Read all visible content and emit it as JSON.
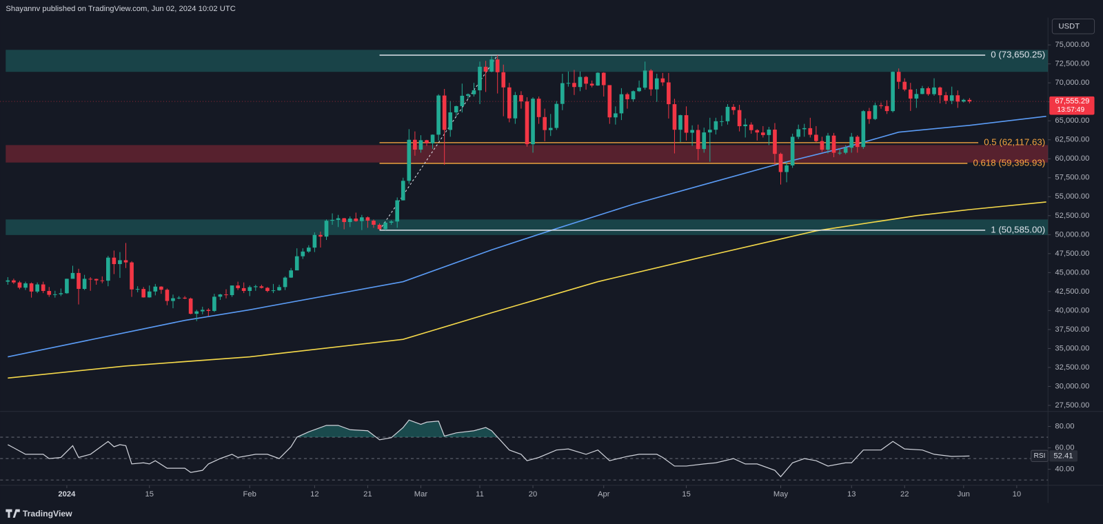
{
  "header": {
    "publisher": "Shayannv published on TradingView.com, Jun 02, 2024 10:02 UTC",
    "currency_button": "USDT",
    "footer_logo": "TradingView"
  },
  "chart_data": {
    "type": "candlestick",
    "up_color": "#22ab94",
    "down_color": "#f23645",
    "grid": false,
    "xlim": [
      -1.3,
      176.3
    ],
    "ylim": [
      26700,
      78600
    ],
    "xticks": [
      {
        "value": 10,
        "label": "2024"
      },
      {
        "value": 24,
        "label": "15"
      },
      {
        "value": 41,
        "label": "Feb"
      },
      {
        "value": 52,
        "label": "12"
      },
      {
        "value": 61,
        "label": "21"
      },
      {
        "value": 70,
        "label": "Mar"
      },
      {
        "value": 80,
        "label": "11"
      },
      {
        "value": 89,
        "label": "20"
      },
      {
        "value": 101,
        "label": "Apr"
      },
      {
        "value": 115,
        "label": "15"
      },
      {
        "value": 131,
        "label": "May"
      },
      {
        "value": 143,
        "label": "13"
      },
      {
        "value": 152,
        "label": "22"
      },
      {
        "value": 162,
        "label": "Jun"
      },
      {
        "value": 171,
        "label": "10"
      }
    ],
    "yticks": [
      {
        "value": 27500,
        "label": "27,500.00"
      },
      {
        "value": 30000,
        "label": "30,000.00"
      },
      {
        "value": 32500,
        "label": "32,500.00"
      },
      {
        "value": 35000,
        "label": "35,000.00"
      },
      {
        "value": 37500,
        "label": "37,500.00"
      },
      {
        "value": 40000,
        "label": "40,000.00"
      },
      {
        "value": 42500,
        "label": "42,500.00"
      },
      {
        "value": 45000,
        "label": "45,000.00"
      },
      {
        "value": 47500,
        "label": "47,500.00"
      },
      {
        "value": 50000,
        "label": "50,000.00"
      },
      {
        "value": 52500,
        "label": "52,500.00"
      },
      {
        "value": 55000,
        "label": "55,000.00"
      },
      {
        "value": 57500,
        "label": "57,500.00"
      },
      {
        "value": 60000,
        "label": "60,000.00"
      },
      {
        "value": 62500,
        "label": "62,500.00"
      },
      {
        "value": 65000,
        "label": "65,000.00"
      },
      {
        "value": 67500,
        "label": "67,500.00"
      },
      {
        "value": 70000,
        "label": "70,000.00"
      },
      {
        "value": 72500,
        "label": "72,500.00"
      },
      {
        "value": 75000,
        "label": "75,000.00"
      }
    ],
    "candles": [
      [
        43800,
        44400,
        43400,
        43970
      ],
      [
        43970,
        44200,
        43500,
        43700
      ],
      [
        43700,
        43900,
        42800,
        43010
      ],
      [
        43010,
        43800,
        42700,
        43580
      ],
      [
        43580,
        43700,
        41700,
        42500
      ],
      [
        42500,
        43700,
        42300,
        43440
      ],
      [
        43440,
        43800,
        42300,
        42580
      ],
      [
        42580,
        43100,
        41800,
        42070
      ],
      [
        42070,
        42600,
        41700,
        42140
      ],
      [
        42140,
        42900,
        41900,
        42280
      ],
      [
        42280,
        44200,
        42200,
        44180
      ],
      [
        44180,
        45900,
        44200,
        44950
      ],
      [
        44950,
        45500,
        40800,
        42850
      ],
      [
        42850,
        44700,
        42700,
        44180
      ],
      [
        44180,
        44400,
        42600,
        44160
      ],
      [
        44160,
        44200,
        43400,
        43970
      ],
      [
        43970,
        44500,
        43600,
        43930
      ],
      [
        43930,
        47200,
        43200,
        46970
      ],
      [
        46970,
        47900,
        44800,
        46120
      ],
      [
        46120,
        47700,
        44300,
        46630
      ],
      [
        46630,
        48900,
        45600,
        46340
      ],
      [
        46340,
        46500,
        41800,
        42780
      ],
      [
        42780,
        43200,
        42400,
        42840
      ],
      [
        42840,
        43100,
        41700,
        41730
      ],
      [
        41730,
        43300,
        41700,
        42510
      ],
      [
        42510,
        43500,
        42000,
        43150
      ],
      [
        43150,
        43200,
        42200,
        42740
      ],
      [
        42740,
        42900,
        40700,
        41260
      ],
      [
        41260,
        42100,
        40300,
        41620
      ],
      [
        41620,
        41900,
        41500,
        41690
      ],
      [
        41690,
        41900,
        41500,
        41580
      ],
      [
        41580,
        41700,
        39500,
        39570
      ],
      [
        39570,
        40100,
        38600,
        39890
      ],
      [
        39890,
        40500,
        39500,
        40090
      ],
      [
        40090,
        40300,
        39300,
        39950
      ],
      [
        39950,
        42200,
        39800,
        41820
      ],
      [
        41820,
        42200,
        41400,
        42120
      ],
      [
        42120,
        42800,
        41600,
        42030
      ],
      [
        42030,
        43300,
        41800,
        43300
      ],
      [
        43300,
        43800,
        42700,
        42950
      ],
      [
        42950,
        43700,
        42300,
        42580
      ],
      [
        42580,
        43300,
        41900,
        43080
      ],
      [
        43080,
        43400,
        42600,
        43190
      ],
      [
        43190,
        43400,
        42900,
        42990
      ],
      [
        42990,
        43100,
        42400,
        42580
      ],
      [
        42580,
        43500,
        42300,
        42660
      ],
      [
        42660,
        43400,
        42600,
        43090
      ],
      [
        43090,
        44500,
        42700,
        44340
      ],
      [
        44340,
        45600,
        44300,
        45290
      ],
      [
        45290,
        48200,
        45300,
        47150
      ],
      [
        47150,
        48200,
        46800,
        47770
      ],
      [
        47770,
        48600,
        47600,
        48290
      ],
      [
        48290,
        50300,
        47700,
        49960
      ],
      [
        49960,
        50400,
        48300,
        49740
      ],
      [
        49740,
        52000,
        49300,
        51830
      ],
      [
        51830,
        52800,
        51300,
        51940
      ],
      [
        51940,
        52600,
        51000,
        52160
      ],
      [
        52160,
        52200,
        50700,
        51660
      ],
      [
        51660,
        52400,
        51000,
        52120
      ],
      [
        52120,
        52900,
        51700,
        51780
      ],
      [
        51780,
        52600,
        50600,
        52280
      ],
      [
        52280,
        52400,
        50900,
        51840
      ],
      [
        51840,
        52000,
        50900,
        51300
      ],
      [
        51300,
        51500,
        50600,
        50730
      ],
      [
        50730,
        51700,
        50600,
        51570
      ],
      [
        51570,
        51900,
        51300,
        51730
      ],
      [
        51730,
        54900,
        50900,
        54520
      ],
      [
        54520,
        57500,
        54500,
        57090
      ],
      [
        57090,
        63900,
        56700,
        62500
      ],
      [
        62500,
        63600,
        60400,
        61200
      ],
      [
        61200,
        63100,
        60800,
        62440
      ],
      [
        62440,
        62500,
        61700,
        62030
      ],
      [
        62030,
        63200,
        61300,
        63170
      ],
      [
        63170,
        68500,
        62400,
        68330
      ],
      [
        68330,
        69200,
        59200,
        63800
      ],
      [
        63800,
        67600,
        62900,
        66110
      ],
      [
        66110,
        67000,
        65600,
        66930
      ],
      [
        66930,
        69900,
        66100,
        68300
      ],
      [
        68300,
        68600,
        67900,
        68500
      ],
      [
        68500,
        70000,
        68200,
        69020
      ],
      [
        69020,
        72800,
        67200,
        72120
      ],
      [
        72120,
        72900,
        68800,
        71480
      ],
      [
        71480,
        73500,
        71400,
        73080
      ],
      [
        73080,
        73650.25,
        68600,
        71400
      ],
      [
        71400,
        72400,
        65600,
        69400
      ],
      [
        69400,
        70000,
        64800,
        65320
      ],
      [
        65320,
        68800,
        64600,
        68390
      ],
      [
        68390,
        68900,
        66600,
        67550
      ],
      [
        67550,
        68100,
        61600,
        61910
      ],
      [
        61910,
        68100,
        60800,
        67910
      ],
      [
        67910,
        68200,
        64600,
        65490
      ],
      [
        65490,
        66600,
        62300,
        63780
      ],
      [
        63780,
        65900,
        63000,
        64060
      ],
      [
        64060,
        67600,
        63800,
        67230
      ],
      [
        67230,
        71200,
        66400,
        69960
      ],
      [
        69960,
        71500,
        69500,
        69990
      ],
      [
        69990,
        71700,
        68400,
        69450
      ],
      [
        69450,
        71500,
        68900,
        70780
      ],
      [
        70780,
        70900,
        69100,
        69890
      ],
      [
        69890,
        70300,
        69400,
        69650
      ],
      [
        69650,
        71400,
        69600,
        71330
      ],
      [
        71330,
        71400,
        68200,
        69700
      ],
      [
        69700,
        69700,
        64600,
        65450
      ],
      [
        65450,
        66900,
        64500,
        65980
      ],
      [
        65980,
        69300,
        65100,
        68500
      ],
      [
        68500,
        68700,
        66600,
        67840
      ],
      [
        67840,
        69000,
        67500,
        68900
      ],
      [
        68900,
        70300,
        68800,
        69360
      ],
      [
        69360,
        72800,
        69100,
        71620
      ],
      [
        71620,
        71800,
        68300,
        69140
      ],
      [
        69140,
        71200,
        67500,
        70590
      ],
      [
        70590,
        71300,
        69600,
        70060
      ],
      [
        70060,
        71300,
        65300,
        67190
      ],
      [
        67190,
        67900,
        60700,
        63820
      ],
      [
        63820,
        65800,
        62200,
        65740
      ],
      [
        65740,
        66900,
        62400,
        63430
      ],
      [
        63430,
        64400,
        61700,
        63790
      ],
      [
        63790,
        64500,
        59800,
        61280
      ],
      [
        61280,
        64100,
        60800,
        63470
      ],
      [
        63470,
        65400,
        59600,
        63820
      ],
      [
        63820,
        65400,
        63200,
        64940
      ],
      [
        64940,
        65700,
        64300,
        64940
      ],
      [
        64940,
        67200,
        64500,
        66840
      ],
      [
        66840,
        67200,
        65800,
        66410
      ],
      [
        66410,
        67100,
        63600,
        64290
      ],
      [
        64290,
        65300,
        62800,
        64500
      ],
      [
        64500,
        64800,
        63300,
        63770
      ],
      [
        63770,
        63900,
        62400,
        63460
      ],
      [
        63460,
        64300,
        62800,
        63120
      ],
      [
        63120,
        64200,
        61800,
        63840
      ],
      [
        63840,
        64700,
        59200,
        60640
      ],
      [
        60640,
        60800,
        56600,
        58250
      ],
      [
        58250,
        59600,
        56900,
        59120
      ],
      [
        59120,
        63300,
        58800,
        62890
      ],
      [
        62890,
        64500,
        62600,
        63890
      ],
      [
        63890,
        64600,
        62900,
        64030
      ],
      [
        64030,
        65400,
        62800,
        63160
      ],
      [
        63160,
        64300,
        62200,
        62330
      ],
      [
        62330,
        62900,
        60900,
        61190
      ],
      [
        61190,
        63400,
        60700,
        63050
      ],
      [
        63050,
        63400,
        60200,
        60790
      ],
      [
        60790,
        61400,
        60500,
        60790
      ],
      [
        60790,
        61800,
        60600,
        61450
      ],
      [
        61450,
        63400,
        60800,
        62900
      ],
      [
        62900,
        63100,
        60800,
        61550
      ],
      [
        61550,
        66400,
        61300,
        66270
      ],
      [
        66270,
        66700,
        64600,
        65230
      ],
      [
        65230,
        67400,
        65100,
        67050
      ],
      [
        67050,
        67400,
        66600,
        66940
      ],
      [
        66940,
        67700,
        65900,
        66280
      ],
      [
        66280,
        71500,
        66100,
        71450
      ],
      [
        71450,
        71900,
        69200,
        70140
      ],
      [
        70140,
        70600,
        68900,
        69120
      ],
      [
        69120,
        70000,
        66300,
        67930
      ],
      [
        67930,
        69200,
        66700,
        68530
      ],
      [
        68530,
        69600,
        68500,
        69290
      ],
      [
        69290,
        69500,
        68300,
        68510
      ],
      [
        68510,
        70600,
        68300,
        69390
      ],
      [
        69390,
        69500,
        67300,
        68370
      ],
      [
        68370,
        68800,
        67200,
        67630
      ],
      [
        67630,
        69500,
        67200,
        68360
      ],
      [
        68360,
        69000,
        66700,
        67530
      ],
      [
        67530,
        67900,
        67400,
        67760
      ],
      [
        67760,
        68000,
        67300,
        67555.29
      ]
    ],
    "moving_averages": [
      {
        "color": "#5b9cf6",
        "x": [
          0,
          30,
          41,
          67,
          82,
          93,
          106,
          118,
          131,
          142,
          151,
          163,
          176
        ],
        "values": [
          33900,
          38700,
          40100,
          43800,
          48000,
          50800,
          54000,
          56600,
          59400,
          61500,
          63500,
          64400,
          65600
        ]
      },
      {
        "color": "#f5d94a",
        "x": [
          0,
          20,
          41,
          67,
          82,
          100,
          118,
          137,
          154,
          163,
          176
        ],
        "values": [
          31100,
          32700,
          33900,
          36200,
          39700,
          43800,
          47100,
          50500,
          52500,
          53300,
          54300
        ]
      }
    ],
    "zones": [
      {
        "top": 74350,
        "bottom": 71450,
        "color": "#26a69a"
      },
      {
        "top": 61800,
        "bottom": 59500,
        "color": "#f23645"
      },
      {
        "top": 52000,
        "bottom": 49950,
        "color": "#26a69a"
      }
    ],
    "fib": {
      "anchor_x": [
        63,
        83
      ],
      "levels": [
        {
          "value": 73650.25,
          "label": "0 (73,650.25)",
          "color": "#e0e3eb"
        },
        {
          "value": 62117.63,
          "label": "0.5 (62,117.63)",
          "color": "#f7a540"
        },
        {
          "value": 59395.93,
          "label": "0.618 (59,395.93)",
          "color": "#f7a540"
        },
        {
          "value": 50585.0,
          "label": "1 (50,585.00)",
          "color": "#e0e3eb"
        }
      ]
    },
    "last_price": {
      "value": 67555.29,
      "label": "67,555.29",
      "countdown": "13:57:49",
      "color": "#f23645"
    },
    "rsi": {
      "name": "RSI",
      "color": "#d1d4dc",
      "ylim": [
        25,
        94
      ],
      "yticks": [
        {
          "value": 80,
          "label": "80.00"
        },
        {
          "value": 60,
          "label": "60.00"
        },
        {
          "value": 40,
          "label": "40.00"
        }
      ],
      "bands": [
        70,
        50,
        30
      ],
      "x": [
        0,
        1,
        3,
        6,
        7,
        9,
        11,
        12,
        14,
        17,
        18,
        19,
        20,
        21,
        23,
        24,
        25,
        27,
        30,
        31,
        33,
        34,
        36,
        38,
        39,
        42,
        44,
        46,
        48,
        49,
        51,
        54,
        56,
        58,
        61,
        63,
        65,
        67,
        68,
        70,
        71,
        73,
        74,
        76,
        79,
        81,
        82,
        85,
        87,
        88,
        90,
        93,
        95,
        98,
        100,
        102,
        105,
        107,
        110,
        111,
        113,
        115,
        118,
        120,
        123,
        125,
        127,
        130,
        131,
        133,
        135,
        137,
        139,
        142,
        143,
        145,
        148,
        150,
        152,
        155,
        157,
        160,
        163
      ],
      "values": [
        63,
        60,
        54,
        54,
        50,
        51,
        62,
        51,
        54,
        66,
        61,
        63,
        62,
        45,
        46,
        45,
        48,
        41,
        41,
        37,
        39,
        45,
        50,
        54,
        51,
        54,
        54,
        50,
        61,
        70,
        75,
        81,
        81,
        77,
        76,
        67.5,
        69.5,
        79,
        86,
        82,
        84,
        85,
        71,
        74,
        76,
        79,
        76,
        58,
        54,
        48,
        51,
        58,
        59,
        54,
        58,
        48,
        52,
        54,
        54,
        51,
        43,
        43,
        45,
        46,
        50,
        45,
        45,
        39,
        33,
        46,
        50,
        48,
        43,
        46,
        46,
        58,
        58,
        66,
        59,
        58,
        54,
        52,
        52.41
      ]
    }
  }
}
